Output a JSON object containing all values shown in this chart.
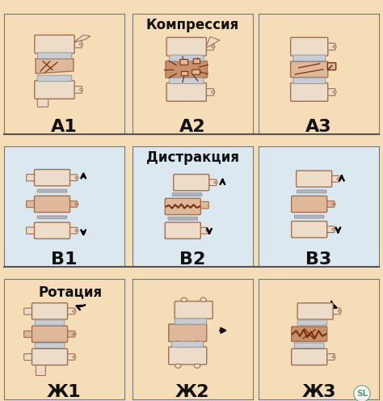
{
  "row_titles": [
    "Компрессия",
    "Дистракция",
    "Ротация"
  ],
  "cell_labels": [
    [
      "А1",
      "А2",
      "А3"
    ],
    [
      "В1",
      "В2",
      "В3"
    ],
    [
      "Ж1",
      "Ж2",
      "Ж3"
    ]
  ],
  "bg_color": "#f5ddb8",
  "row1_bg": "#f5ddb8",
  "row2_bg": "#dce8f0",
  "row3_bg": "#f5ddb8",
  "divider_color": "#555555",
  "bone_main": "#deb899",
  "bone_light": "#ecdcc8",
  "bone_shadow": "#c8956b",
  "bone_dark": "#a07050",
  "disc_color": "#c8ccd4",
  "crack_color": "#7a3010",
  "text_color": "#111111",
  "title_fontsize": 12,
  "label_fontsize": 16,
  "watermark_color": "#5a9a8a",
  "fig_width": 4.74,
  "fig_height": 4.96,
  "dpi": 100
}
